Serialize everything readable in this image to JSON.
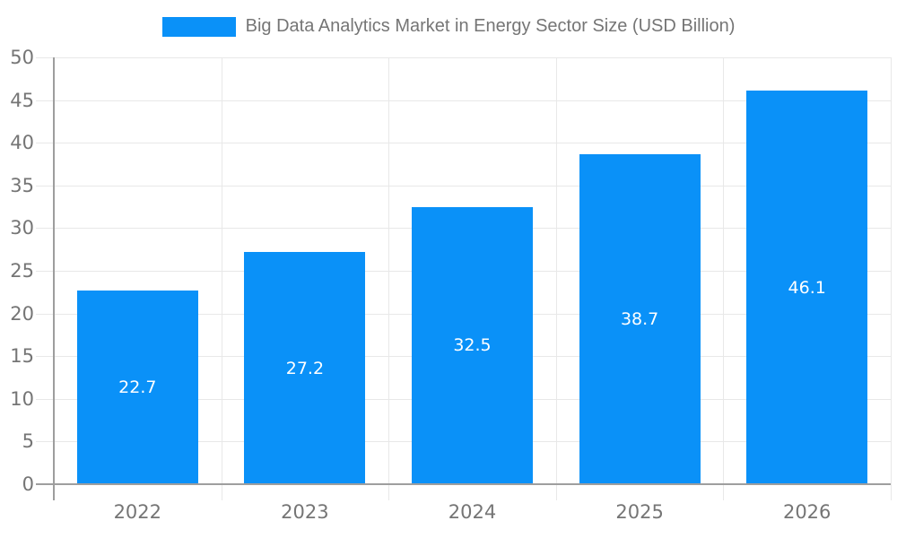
{
  "colors": {
    "bar": "#0A91F8",
    "text": "#757575",
    "axis_line": "#9E9E9E",
    "gridline": "#E8E8E8",
    "value_label": "#FFFFFF",
    "background": "#FFFFFF"
  },
  "legend": {
    "swatch_color": "#0A91F8",
    "label": "Big Data Analytics Market in Energy Sector Size (USD Billion)"
  },
  "chart_data": {
    "type": "bar",
    "title": "Big Data Analytics Market in Energy Sector Size (USD Billion)",
    "categories": [
      "2022",
      "2023",
      "2024",
      "2025",
      "2026"
    ],
    "values": [
      22.7,
      27.2,
      32.5,
      38.7,
      46.1
    ],
    "series_name": "Big Data Analytics Market in Energy Sector Size (USD Billion)",
    "xlabel": "",
    "ylabel": "",
    "ylim": [
      0,
      50
    ],
    "ytick_step": 5,
    "yticks": [
      0,
      5,
      10,
      15,
      20,
      25,
      30,
      35,
      40,
      45,
      50
    ],
    "grid": true,
    "legend_position": "top-center",
    "value_label_position": "inside-center",
    "value_label_decimals": 1
  }
}
